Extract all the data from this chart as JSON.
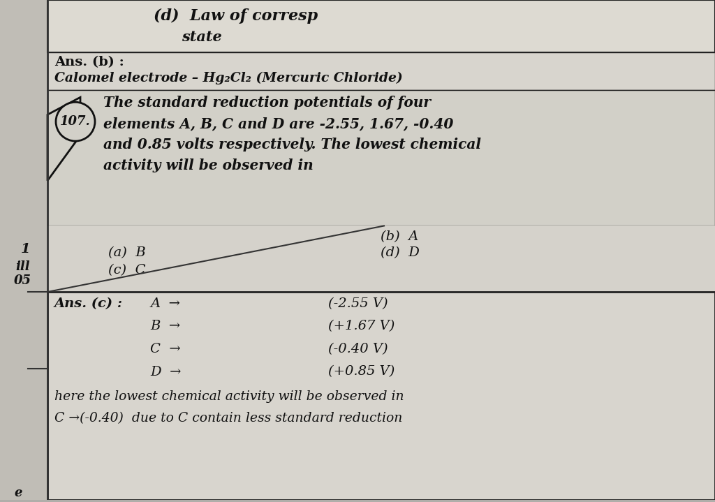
{
  "bg_color": "#c8c8c8",
  "page_bg": "#e8e6e0",
  "box_bg": "#dddbd4",
  "white_box": "#e2e0da",
  "top_section_bg": "#d8d6d0",
  "title_top": "(d)  Law of corresp",
  "title_state": "state",
  "ans_b_label": "Ans. (b) :",
  "ans_b_line1": "Calomel electrode – Hg₂Cl₂ (Mercuric Chloride)",
  "q107_num": "107.",
  "q107_line1": "The standard reduction potentials of four",
  "q107_line2": "elements A, B, C and D are -2.55, 1.67, -0.40",
  "q107_line3": "and 0.85 volts respectively. The lowest chemical",
  "q107_line4": "activity will be observed in",
  "opt_a": "(a)  B",
  "opt_b": "(b)  A",
  "opt_c": "(c)  C",
  "opt_d": "(d)  D",
  "ans_c_label": "Ans. (c) :",
  "elem_A": "A  →",
  "elem_B": "B  →",
  "elem_C": "C  →",
  "elem_D": "D  →",
  "val_A": "(-2.55 V)",
  "val_B": "(+1.67 V)",
  "val_C": "(-0.40 V)",
  "val_D": "(+0.85 V)",
  "bottom_line1": "here the lowest chemical activity will be observed in",
  "bottom_line2": "C →(-0.40)  due to C contain less standard reduction",
  "margin1": "1",
  "margin2": "ill",
  "margin3": "5",
  "margin_e": "e",
  "left_col_numbers": "05"
}
